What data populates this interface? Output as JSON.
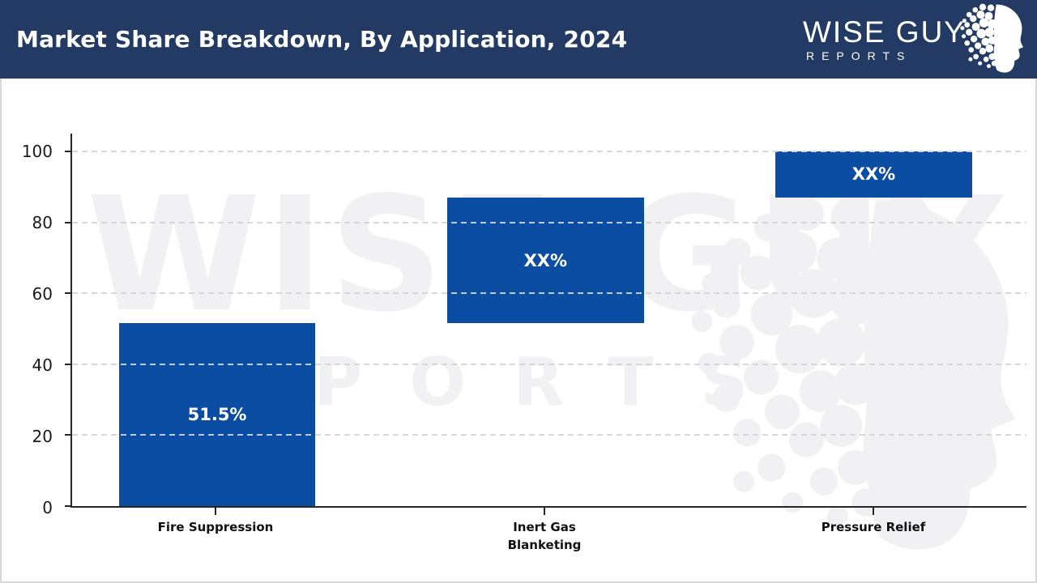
{
  "header": {
    "title": "Market Share Breakdown, By Application, 2024",
    "brand": {
      "name": "WISE GUY",
      "tagline": "REPORTS"
    }
  },
  "watermark": {
    "line1": "WISE GUY",
    "line2": "REPORTS"
  },
  "colors": {
    "header_bg": "#233a64",
    "bar": "#0b4da2",
    "bar_label": "#ffffff",
    "axis": "#262626",
    "gridline": "#d4d4d4",
    "tick_text": "#1a1a1a",
    "watermark": "#f1f1f4",
    "page_border": "#d9d9d9"
  },
  "chart_data": {
    "type": "bar",
    "subtype": "floating-waterfall",
    "title": "Market Share Breakdown, By Application, 2024",
    "categories": [
      "Fire Suppression",
      "Inert Gas\nBlanketing",
      "Pressure Relief"
    ],
    "segments": [
      {
        "category": "Fire Suppression",
        "start": 0,
        "end": 51.5,
        "label": "51.5%"
      },
      {
        "category": "Inert Gas Blanketing",
        "start": 51.5,
        "end": 87,
        "label": "XX%"
      },
      {
        "category": "Pressure Relief",
        "start": 87,
        "end": 100,
        "label": "XX%"
      }
    ],
    "yticks": [
      0,
      20,
      40,
      60,
      80,
      100
    ],
    "ylim": [
      0,
      105
    ],
    "xlabel": "",
    "ylabel": "",
    "grid": "horizontal-dashed",
    "legend": "none",
    "bar_color": "#0b4da2"
  }
}
